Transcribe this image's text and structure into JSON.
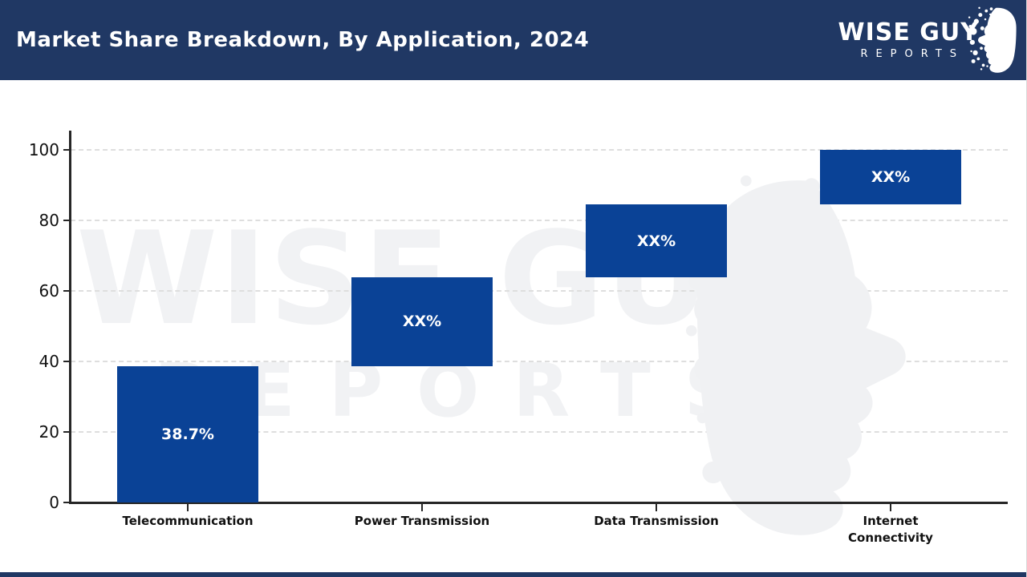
{
  "header": {
    "title": "Market Share Breakdown, By Application, 2024",
    "background_color": "#203864"
  },
  "logo": {
    "line1": "WISE GUY",
    "line2": "REPORTS",
    "face_icon": "dotted-head-profile-icon",
    "color": "#ffffff"
  },
  "watermark": {
    "line1": "WISE GUY",
    "line2": "REPORTS",
    "face_icon": "dotted-head-profile-icon",
    "color": "#f1f2f4"
  },
  "chart_data": {
    "type": "bar",
    "variant": "floating-waterfall",
    "title": "Market Share Breakdown, By Application, 2024",
    "categories": [
      "Telecommunication",
      "Power Transmission",
      "Data Transmission",
      "Internet\nConnectivity"
    ],
    "bars": [
      {
        "category": "Telecommunication",
        "start": 0,
        "end": 38.7,
        "label": "38.7%"
      },
      {
        "category": "Power Transmission",
        "start": 38.7,
        "end": 63.9,
        "label": "XX%"
      },
      {
        "category": "Data Transmission",
        "start": 63.9,
        "end": 84.5,
        "label": "XX%"
      },
      {
        "category": "Internet Connectivity",
        "start": 84.5,
        "end": 100,
        "label": "XX%"
      }
    ],
    "xlabel": "",
    "ylabel": "",
    "ylim": [
      0,
      100
    ],
    "yticks": [
      0,
      20,
      40,
      60,
      80,
      100
    ],
    "grid": "horizontal-dashed",
    "legend": "none",
    "bar_color": "#0a4296",
    "bar_label_color": "#ffffff",
    "axis_color": "#262626",
    "gridline_color": "#dedede"
  }
}
